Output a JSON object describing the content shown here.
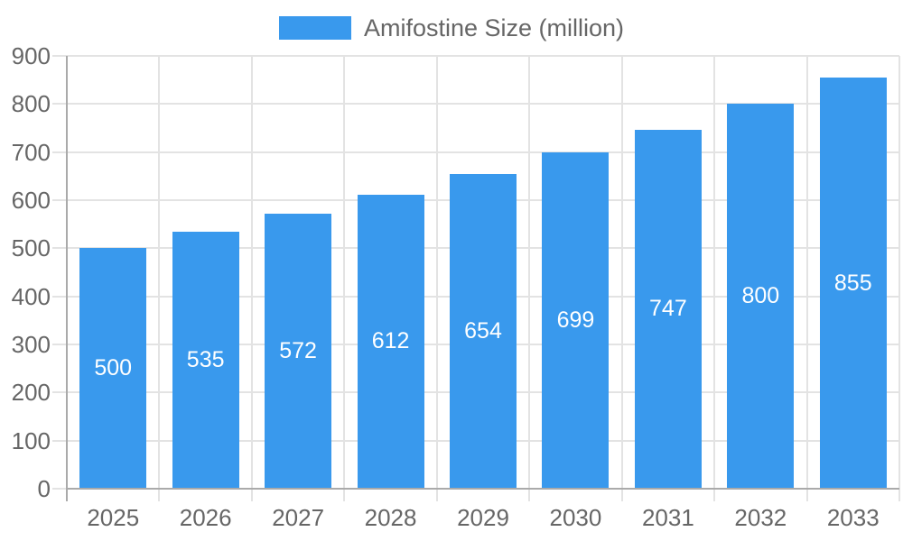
{
  "legend": {
    "label": "Amifostine Size (million)"
  },
  "colors": {
    "bar": "#3999ed",
    "grid": "#e3e3e3",
    "axis": "#aaaaaa",
    "tick_text": "#666666",
    "value_text": "#ffffff",
    "background": "#ffffff"
  },
  "chart_data": {
    "type": "bar",
    "title": "",
    "categories": [
      "2025",
      "2026",
      "2027",
      "2028",
      "2029",
      "2030",
      "2031",
      "2032",
      "2033"
    ],
    "series": [
      {
        "name": "Amifostine Size (million)",
        "values": [
          500,
          535,
          572,
          612,
          654,
          699,
          747,
          800,
          855
        ]
      }
    ],
    "xlabel": "",
    "ylabel": "",
    "ylim": [
      0,
      900
    ],
    "ytick_step": 100,
    "grid": true,
    "legend_position": "top-center",
    "value_labels": "inside-center",
    "bar_color": "#3999ed"
  }
}
